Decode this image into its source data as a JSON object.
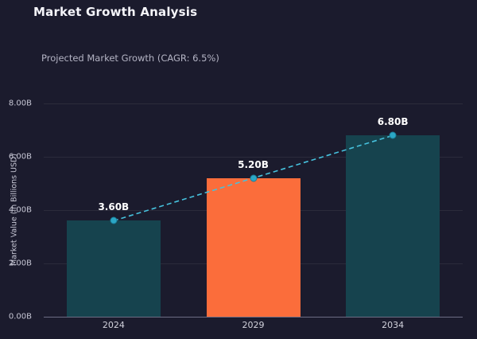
{
  "chart_data": {
    "type": "bar",
    "title": "Market Growth Analysis",
    "subtitle": "Projected Market Growth (CAGR: 6.5%)",
    "categories": [
      "2024",
      "2029",
      "2034"
    ],
    "values": [
      3.6,
      5.2,
      6.8
    ],
    "value_labels": [
      "3.60B",
      "5.20B",
      "6.80B"
    ],
    "xlabel": "",
    "ylabel": "Market Value (in Billions USD)",
    "ylim": [
      0,
      8
    ],
    "ytick_values": [
      0,
      2,
      4,
      6,
      8
    ],
    "ytick_labels": [
      "0.00B",
      "2.00B",
      "4.00B",
      "6.00B",
      "8.00B"
    ],
    "legend": "none",
    "grid": "off",
    "colors": {
      "background": "#1b1b2d",
      "bar_teal": "#16434e",
      "bar_orange": "#fb6d3b",
      "bar_fill_by_index": [
        "#16434e",
        "#fb6d3b",
        "#16434e"
      ],
      "trend_line": "#46c1dd",
      "marker_fill": "#2ba7c5",
      "marker_edge": "#1b7d99",
      "axis_text": "#c6c6d4",
      "title_text": "#f5f5fa"
    }
  }
}
